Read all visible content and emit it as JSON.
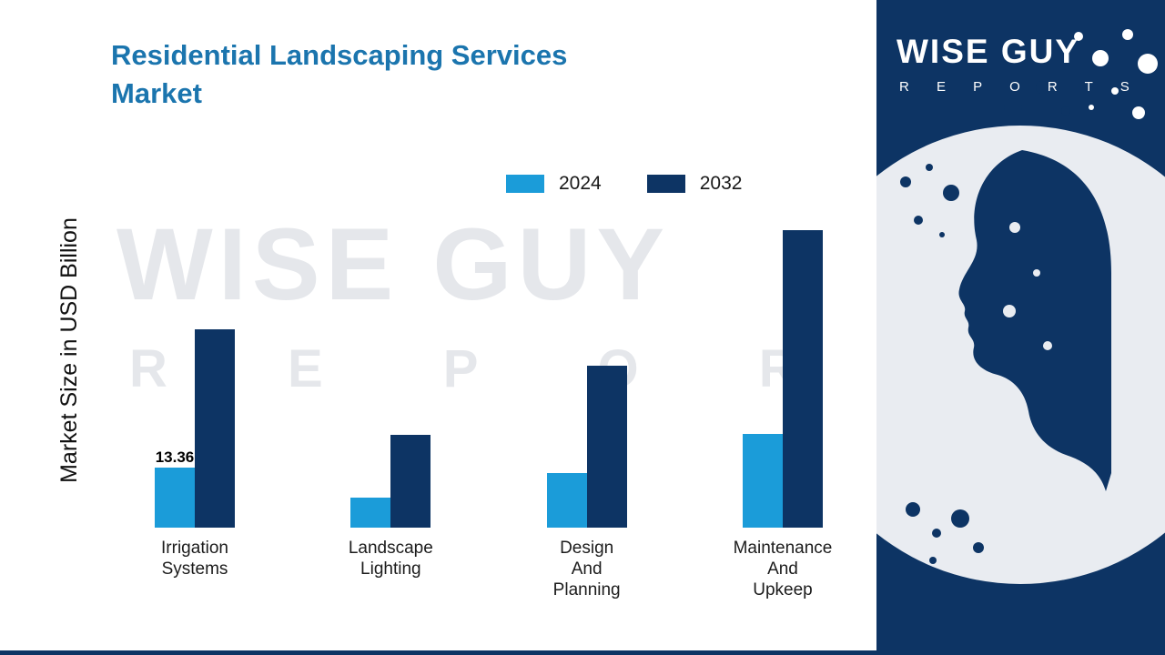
{
  "header": {
    "title_line1": "Residential Landscaping Services",
    "title_line2": "Market"
  },
  "brand": {
    "name_line": "WISE GUY",
    "reports_line": "R E P O R T S"
  },
  "watermark": {
    "name_line": "WISE GUY",
    "reports_line": "R E P O R T S"
  },
  "chart_data": {
    "type": "bar",
    "title": "Residential Landscaping Services Market",
    "xlabel": "",
    "ylabel": "Market Size in USD Billion",
    "ylim": [
      0,
      70
    ],
    "grid": false,
    "legend_position": "top",
    "categories": [
      "Irrigation Systems",
      "Landscape Lighting",
      "Design And Planning",
      "Maintenance And Upkeep"
    ],
    "category_lines": [
      [
        "Irrigation",
        "Systems"
      ],
      [
        "Landscape",
        "Lighting"
      ],
      [
        "Design",
        "And",
        "Planning"
      ],
      [
        "Maintenance",
        "And",
        "Upkeep"
      ]
    ],
    "series": [
      {
        "name": "2024",
        "color": "#1b9cd9",
        "values": [
          13.36,
          6.7,
          12.2,
          20.9
        ]
      },
      {
        "name": "2032",
        "color": "#0d3464",
        "values": [
          44.2,
          20.7,
          36.1,
          66.3
        ]
      }
    ],
    "data_labels": [
      {
        "series_index": 0,
        "category_index": 0,
        "text": "13.36"
      }
    ]
  },
  "colors": {
    "title_blue": "#1b75ae",
    "bar_2024": "#1b9cd9",
    "bar_2032": "#0d3464",
    "panel_navy": "#0d3464",
    "watermark_gray": "#e5e7eb",
    "background": "#ffffff"
  }
}
